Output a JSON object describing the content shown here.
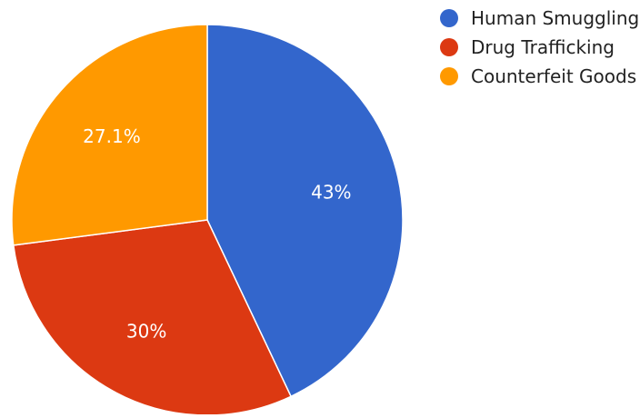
{
  "chart_data": {
    "type": "pie",
    "slices": [
      {
        "label": "Human Smuggling",
        "value": 43.0,
        "display": "43%",
        "color": "#3366CC"
      },
      {
        "label": "Drug Trafficking",
        "value": 30.0,
        "display": "30%",
        "color": "#DC3912"
      },
      {
        "label": "Counterfeit Goods",
        "value": 27.1,
        "display": "27.1%",
        "color": "#FF9900"
      }
    ],
    "legend_position": "right",
    "start_angle": "12 o'clock",
    "direction": "clockwise"
  }
}
